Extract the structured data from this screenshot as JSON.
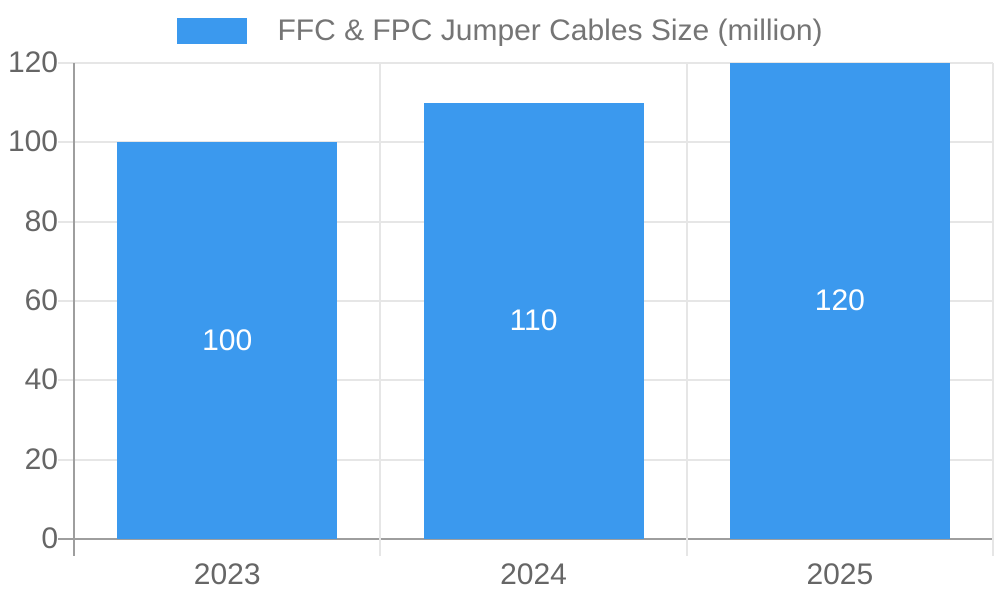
{
  "legend": {
    "label": "FFC & FPC Jumper Cables Size (million)"
  },
  "chart_data": {
    "type": "bar",
    "title": "FFC & FPC Jumper Cables Size (million)",
    "categories": [
      "2023",
      "2024",
      "2025"
    ],
    "series": [
      {
        "name": "FFC & FPC Jumper Cables Size (million)",
        "values": [
          100,
          110,
          120
        ]
      }
    ],
    "data_labels": [
      "100",
      "110",
      "120"
    ],
    "xlabel": "",
    "ylabel": "",
    "ylim": [
      0,
      120
    ],
    "yticks": [
      0,
      20,
      40,
      60,
      80,
      100,
      120
    ],
    "grid": true,
    "legend_position": "top",
    "colors": {
      "bar": "#3B99EE",
      "axis_border": "#9e9e9e",
      "gridline": "#e6e6e6",
      "tick_label": "#666666",
      "legend_text": "#757575",
      "data_label": "#ffffff",
      "background": "#ffffff"
    }
  }
}
